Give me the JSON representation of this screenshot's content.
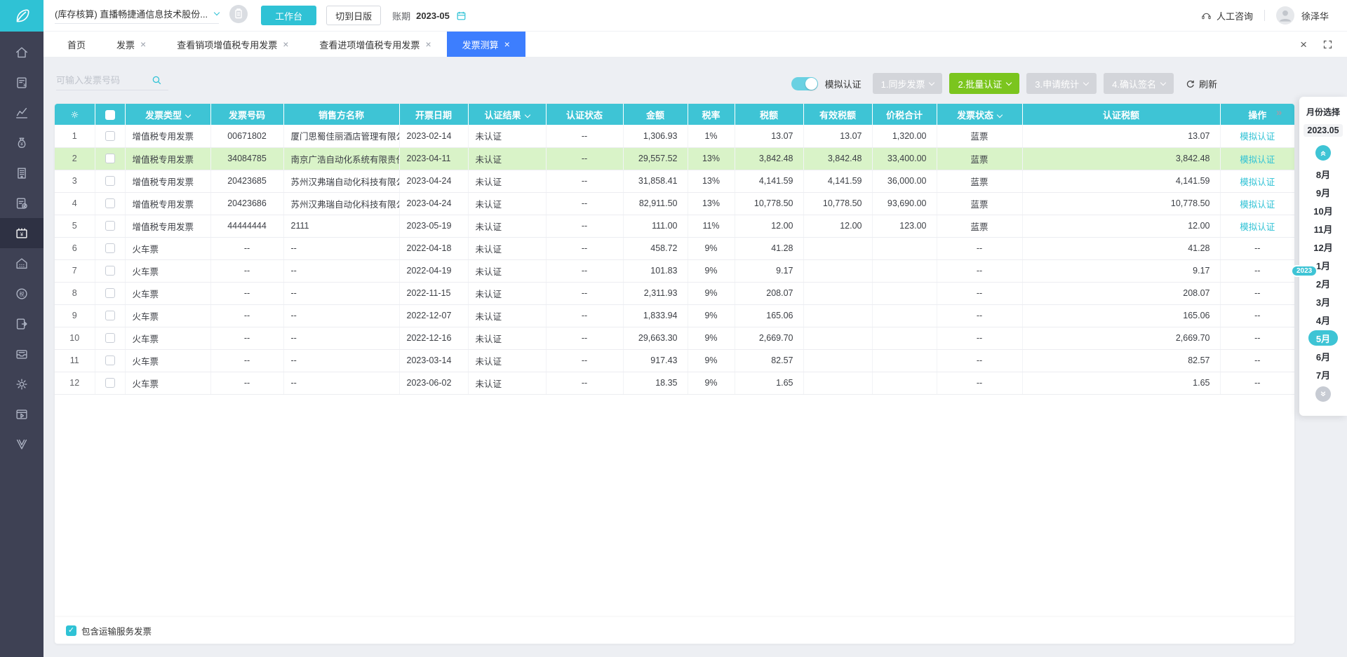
{
  "colors": {
    "accent_teal": "#2FC2D5",
    "table_header_teal": "#3EC4D5",
    "active_tab_blue": "#3D7EFE",
    "green_button": "#7BC51E",
    "row_highlight_green": "#D9F3C8",
    "sidebar_bg": "#3E4154"
  },
  "sidebar": {
    "items": [
      {
        "name": "home"
      },
      {
        "name": "billing"
      },
      {
        "name": "chart"
      },
      {
        "name": "funds"
      },
      {
        "name": "company"
      },
      {
        "name": "report"
      },
      {
        "name": "invoice",
        "active": true
      },
      {
        "name": "warehouse"
      },
      {
        "name": "tax"
      },
      {
        "name": "document-out"
      },
      {
        "name": "archive"
      },
      {
        "name": "settings"
      },
      {
        "name": "video"
      },
      {
        "name": "brand-v"
      }
    ]
  },
  "header": {
    "company_selector": "(库存核算) 直播畅捷通信息技术股份...",
    "workbench_button": "工作台",
    "switch_version_button": "切到日版",
    "period_label": "账期",
    "period_value": "2023-05",
    "support_label": "人工咨询",
    "user_name": "徐泽华"
  },
  "window_controls": {
    "close_label": "×"
  },
  "tabs": [
    {
      "label": "首页",
      "closable": false,
      "active": false
    },
    {
      "label": "发票",
      "closable": true,
      "active": false
    },
    {
      "label": "查看销项增值税专用发票",
      "closable": true,
      "active": false
    },
    {
      "label": "查看进项增值税专用发票",
      "closable": true,
      "active": false
    },
    {
      "label": "发票测算",
      "closable": true,
      "active": true
    }
  ],
  "toolbar": {
    "search_placeholder": "可输入发票号码",
    "toggle_label": "模拟认证",
    "toggle_on": true,
    "buttons": [
      {
        "label": "1.同步发票",
        "style": "gray"
      },
      {
        "label": "2.批量认证",
        "style": "green"
      },
      {
        "label": "3.申请统计",
        "style": "gray"
      },
      {
        "label": "4.确认签名",
        "style": "gray"
      }
    ],
    "refresh_label": "刷新"
  },
  "table": {
    "columns": [
      {
        "label": "",
        "type": "gear"
      },
      {
        "label": "",
        "type": "checkbox"
      },
      {
        "label": "发票类型",
        "sort": true
      },
      {
        "label": "发票号码"
      },
      {
        "label": "销售方名称"
      },
      {
        "label": "开票日期"
      },
      {
        "label": "认证结果",
        "sort": true
      },
      {
        "label": "认证状态"
      },
      {
        "label": "金额"
      },
      {
        "label": "税率"
      },
      {
        "label": "税额"
      },
      {
        "label": "有效税额"
      },
      {
        "label": "价税合计"
      },
      {
        "label": "发票状态",
        "sort": true
      },
      {
        "label": "认证税额"
      },
      {
        "label": "操作"
      }
    ],
    "rows": [
      {
        "index": "1",
        "type": "增值税专用发票",
        "number": "00671802",
        "seller": "厦门思蜀佳丽酒店管理有限公司",
        "date": "2023-02-14",
        "result": "未认证",
        "status": "--",
        "amount": "1,306.93",
        "rate": "1%",
        "tax": "13.07",
        "valid_tax": "13.07",
        "total": "1,320.00",
        "invoice_status": "蓝票",
        "auth_tax": "13.07",
        "action": "模拟认证",
        "action_link": true,
        "highlighted": false
      },
      {
        "index": "2",
        "type": "增值税专用发票",
        "number": "34084785",
        "seller": "南京广浩自动化系统有限责任公司",
        "date": "2023-04-11",
        "result": "未认证",
        "status": "--",
        "amount": "29,557.52",
        "rate": "13%",
        "tax": "3,842.48",
        "valid_tax": "3,842.48",
        "total": "33,400.00",
        "invoice_status": "蓝票",
        "auth_tax": "3,842.48",
        "action": "模拟认证",
        "action_link": true,
        "highlighted": true
      },
      {
        "index": "3",
        "type": "增值税专用发票",
        "number": "20423685",
        "seller": "苏州汉弗瑞自动化科技有限公司",
        "date": "2023-04-24",
        "result": "未认证",
        "status": "--",
        "amount": "31,858.41",
        "rate": "13%",
        "tax": "4,141.59",
        "valid_tax": "4,141.59",
        "total": "36,000.00",
        "invoice_status": "蓝票",
        "auth_tax": "4,141.59",
        "action": "模拟认证",
        "action_link": true,
        "highlighted": false
      },
      {
        "index": "4",
        "type": "增值税专用发票",
        "number": "20423686",
        "seller": "苏州汉弗瑞自动化科技有限公司",
        "date": "2023-04-24",
        "result": "未认证",
        "status": "--",
        "amount": "82,911.50",
        "rate": "13%",
        "tax": "10,778.50",
        "valid_tax": "10,778.50",
        "total": "93,690.00",
        "invoice_status": "蓝票",
        "auth_tax": "10,778.50",
        "action": "模拟认证",
        "action_link": true,
        "highlighted": false
      },
      {
        "index": "5",
        "type": "增值税专用发票",
        "number": "44444444",
        "seller": "2111",
        "date": "2023-05-19",
        "result": "未认证",
        "status": "--",
        "amount": "111.00",
        "rate": "11%",
        "tax": "12.00",
        "valid_tax": "12.00",
        "total": "123.00",
        "invoice_status": "蓝票",
        "auth_tax": "12.00",
        "action": "模拟认证",
        "action_link": true,
        "highlighted": false
      },
      {
        "index": "6",
        "type": "火车票",
        "number": "--",
        "seller": "--",
        "date": "2022-04-18",
        "result": "未认证",
        "status": "--",
        "amount": "458.72",
        "rate": "9%",
        "tax": "41.28",
        "valid_tax": "",
        "total": "",
        "invoice_status": "--",
        "auth_tax": "41.28",
        "action": "--",
        "action_link": false,
        "highlighted": false
      },
      {
        "index": "7",
        "type": "火车票",
        "number": "--",
        "seller": "--",
        "date": "2022-04-19",
        "result": "未认证",
        "status": "--",
        "amount": "101.83",
        "rate": "9%",
        "tax": "9.17",
        "valid_tax": "",
        "total": "",
        "invoice_status": "--",
        "auth_tax": "9.17",
        "action": "--",
        "action_link": false,
        "highlighted": false
      },
      {
        "index": "8",
        "type": "火车票",
        "number": "--",
        "seller": "--",
        "date": "2022-11-15",
        "result": "未认证",
        "status": "--",
        "amount": "2,311.93",
        "rate": "9%",
        "tax": "208.07",
        "valid_tax": "",
        "total": "",
        "invoice_status": "--",
        "auth_tax": "208.07",
        "action": "--",
        "action_link": false,
        "highlighted": false
      },
      {
        "index": "9",
        "type": "火车票",
        "number": "--",
        "seller": "--",
        "date": "2022-12-07",
        "result": "未认证",
        "status": "--",
        "amount": "1,833.94",
        "rate": "9%",
        "tax": "165.06",
        "valid_tax": "",
        "total": "",
        "invoice_status": "--",
        "auth_tax": "165.06",
        "action": "--",
        "action_link": false,
        "highlighted": false
      },
      {
        "index": "10",
        "type": "火车票",
        "number": "--",
        "seller": "--",
        "date": "2022-12-16",
        "result": "未认证",
        "status": "--",
        "amount": "29,663.30",
        "rate": "9%",
        "tax": "2,669.70",
        "valid_tax": "",
        "total": "",
        "invoice_status": "--",
        "auth_tax": "2,669.70",
        "action": "--",
        "action_link": false,
        "highlighted": false
      },
      {
        "index": "11",
        "type": "火车票",
        "number": "--",
        "seller": "--",
        "date": "2023-03-14",
        "result": "未认证",
        "status": "--",
        "amount": "917.43",
        "rate": "9%",
        "tax": "82.57",
        "valid_tax": "",
        "total": "",
        "invoice_status": "--",
        "auth_tax": "82.57",
        "action": "--",
        "action_link": false,
        "highlighted": false
      },
      {
        "index": "12",
        "type": "火车票",
        "number": "--",
        "seller": "--",
        "date": "2023-06-02",
        "result": "未认证",
        "status": "--",
        "amount": "18.35",
        "rate": "9%",
        "tax": "1.65",
        "valid_tax": "",
        "total": "",
        "invoice_status": "--",
        "auth_tax": "1.65",
        "action": "--",
        "action_link": false,
        "highlighted": false
      }
    ]
  },
  "month_panel": {
    "title": "月份选择",
    "current": "2023.05",
    "year_badge": "2023",
    "months": [
      "8月",
      "9月",
      "10月",
      "11月",
      "12月",
      "1月",
      "2月",
      "3月",
      "4月",
      "5月",
      "6月",
      "7月"
    ],
    "selected": "5月"
  },
  "footer": {
    "checkbox_label": "包含运输服务发票",
    "checked": true
  }
}
